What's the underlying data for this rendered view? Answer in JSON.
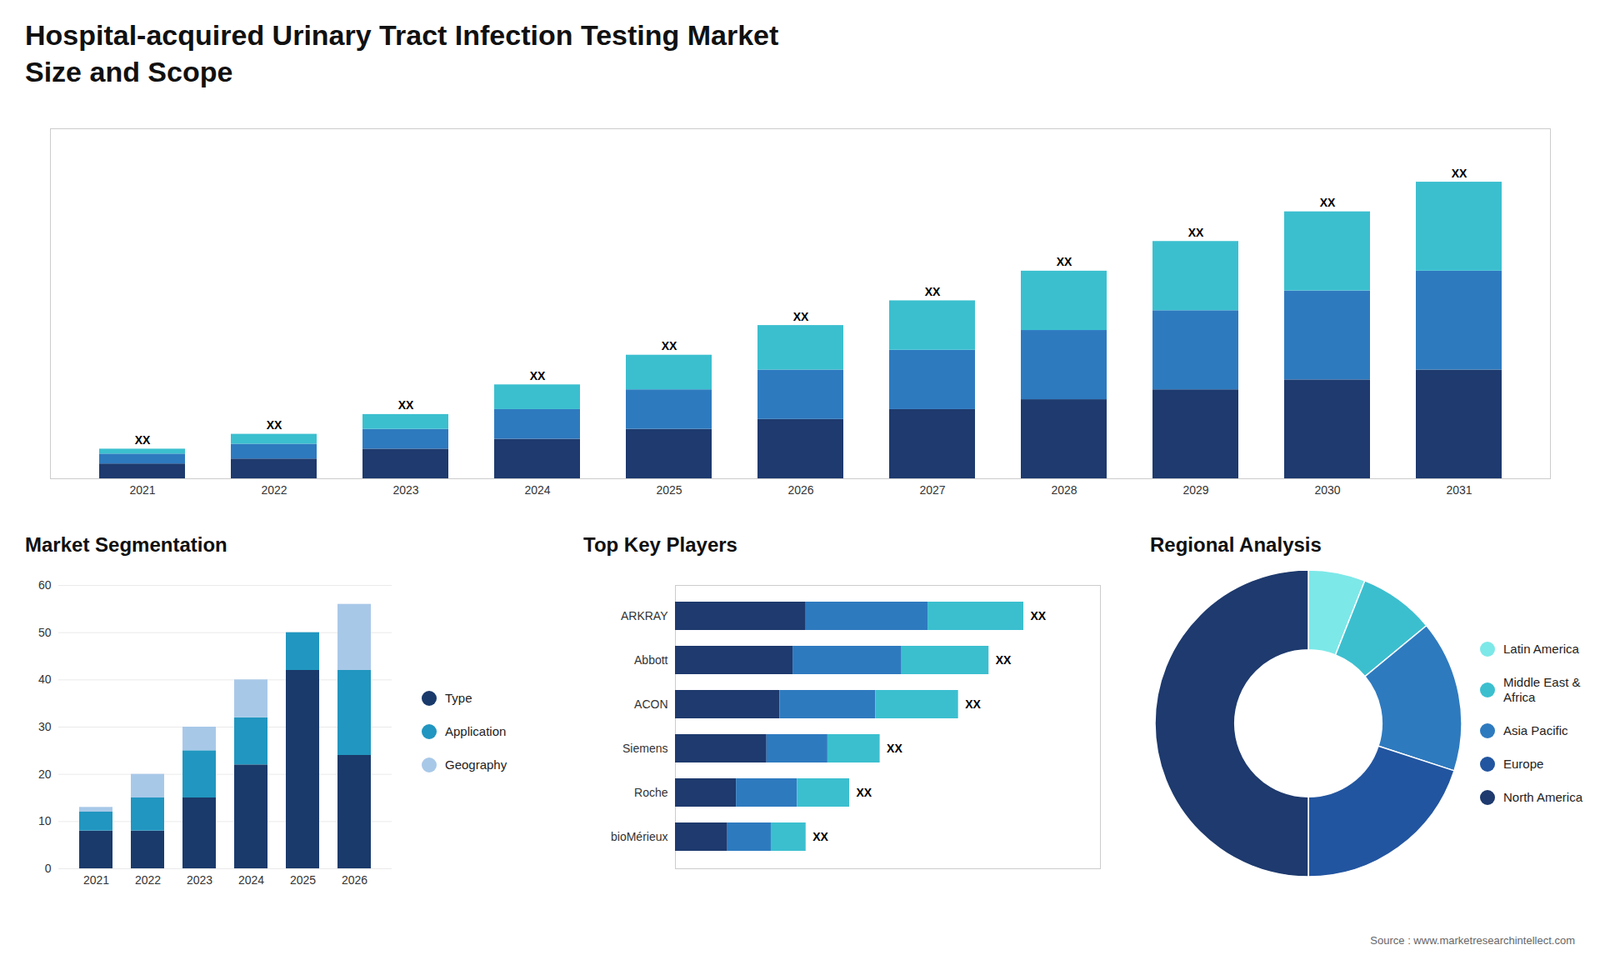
{
  "chart_data": [
    {
      "type": "bar",
      "title": "Hospital-acquired Urinary Tract Infection Testing Market",
      "subtitle": "Size and Scope",
      "stacked": true,
      "categories": [
        "2021",
        "2022",
        "2023",
        "2024",
        "2025",
        "2026",
        "2027",
        "2028",
        "2029",
        "2030",
        "2031"
      ],
      "series": [
        {
          "color": "#1e3a6e",
          "values": [
            3,
            4,
            6,
            8,
            10,
            12,
            14,
            16,
            18,
            20,
            22
          ]
        },
        {
          "color": "#2e7abf",
          "values": [
            2,
            3,
            4,
            6,
            8,
            10,
            12,
            14,
            16,
            18,
            20
          ]
        },
        {
          "color": "#3bbfcf",
          "values": [
            1,
            2,
            3,
            5,
            7,
            9,
            10,
            12,
            14,
            16,
            18
          ]
        }
      ],
      "value_labels": [
        "XX",
        "XX",
        "XX",
        "XX",
        "XX",
        "XX",
        "XX",
        "XX",
        "XX",
        "XX",
        "XX"
      ],
      "ylim": [
        0,
        70.8
      ],
      "yticks": [],
      "tick_labels": "x",
      "grid": false
    },
    {
      "type": "bar",
      "title": "Market Segmentation",
      "stacked": true,
      "categories": [
        "2021",
        "2022",
        "2023",
        "2024",
        "2025",
        "2026"
      ],
      "series": [
        {
          "name": "Type",
          "color": "#1a3a6b",
          "values": [
            8,
            8,
            15,
            22,
            42,
            24
          ]
        },
        {
          "name": "Application",
          "color": "#2196c0",
          "values": [
            4,
            7,
            10,
            10,
            8,
            18
          ]
        },
        {
          "name": "Geography",
          "color": "#a8c8e8",
          "values": [
            1,
            5,
            5,
            8,
            0,
            14
          ]
        }
      ],
      "ylim": [
        0,
        60
      ],
      "yticks": [
        0,
        10,
        20,
        30,
        40,
        50,
        60
      ],
      "grid": true,
      "legend": "right"
    },
    {
      "type": "bar",
      "title": "Top Key Players",
      "orientation": "horizontal",
      "stacked": true,
      "categories": [
        "ARKRAY",
        "Abbott",
        "ACON",
        "Siemens",
        "Roche",
        "bioMérieux"
      ],
      "series": [
        {
          "color": "#1e3a6e",
          "values": [
            30,
            27,
            24,
            21,
            14,
            12
          ]
        },
        {
          "color": "#2e7abf",
          "values": [
            28,
            25,
            22,
            14,
            14,
            10
          ]
        },
        {
          "color": "#3bbfcf",
          "values": [
            22,
            20,
            19,
            12,
            12,
            8
          ]
        }
      ],
      "value_labels": [
        "XX",
        "XX",
        "XX",
        "XX",
        "XX",
        "XX"
      ],
      "xlim": [
        0,
        97.6
      ],
      "xticks": [],
      "tick_labels": "y",
      "grid": false
    },
    {
      "type": "donut",
      "title": "Regional Analysis",
      "categories": [
        "Latin America",
        "Middle East &\nAfrica",
        "Asia Pacific",
        "Europe",
        "North America"
      ],
      "values": [
        6,
        8,
        16,
        20,
        50
      ],
      "colors": [
        "#7de8e8",
        "#3bbfcf",
        "#2e7abf",
        "#2255a0",
        "#1e3a6e"
      ],
      "legend": "right",
      "annotations": [
        "Source : www.marketresearchintellect.com"
      ]
    }
  ]
}
